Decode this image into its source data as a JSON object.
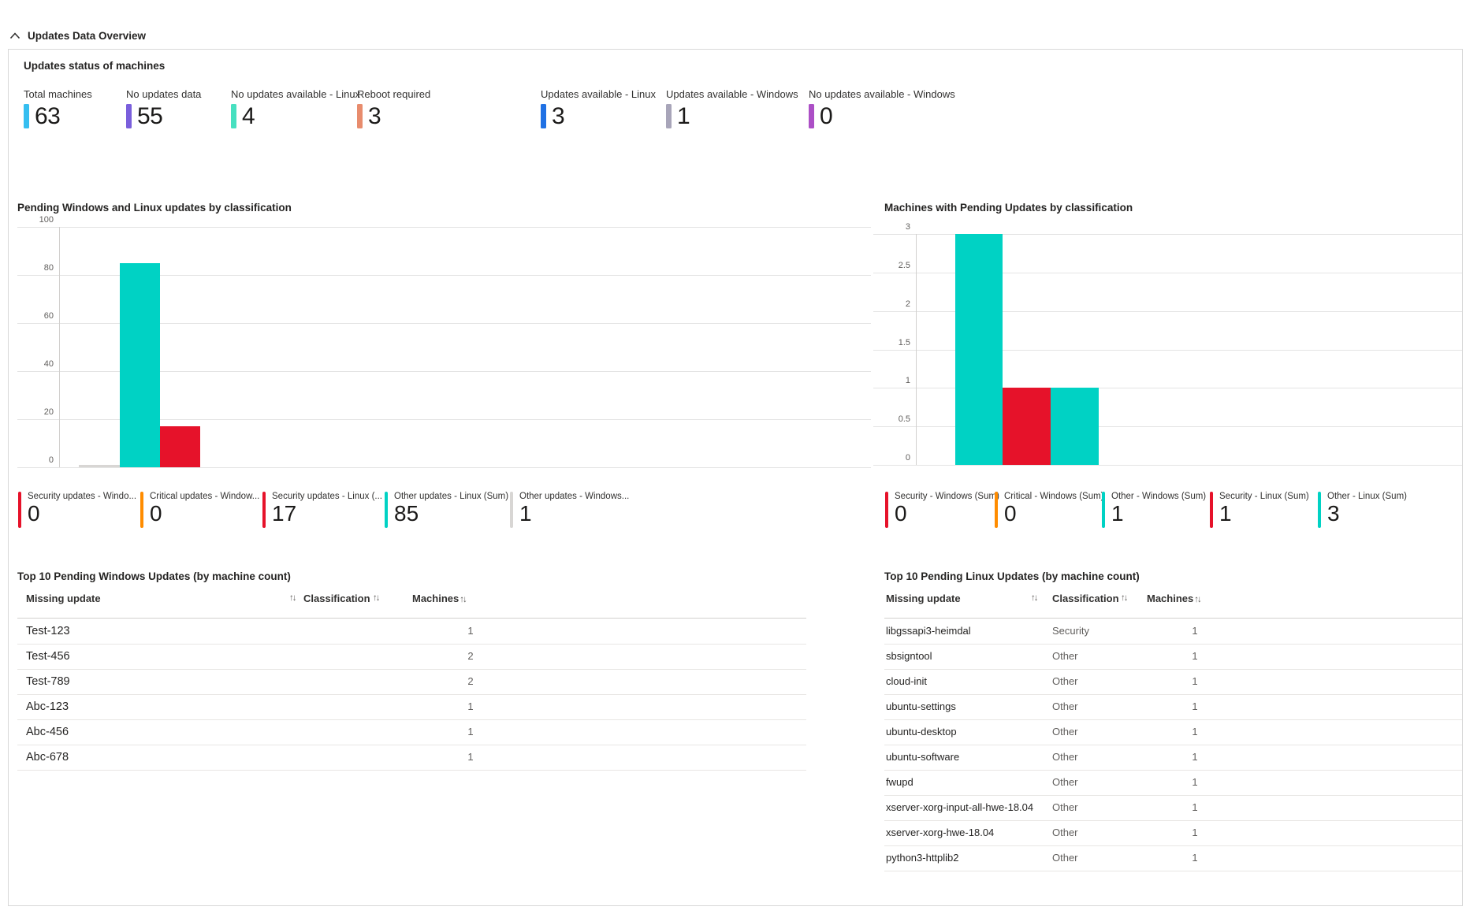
{
  "header": {
    "title": "Updates Data Overview"
  },
  "status": {
    "title": "Updates status of machines",
    "tiles": [
      {
        "label": "Total machines",
        "value": "63",
        "color": "#35bef0"
      },
      {
        "label": "No updates data",
        "value": "55",
        "color": "#7a5fdc"
      },
      {
        "label": "No updates available - Linux",
        "value": "4",
        "color": "#47e0c0"
      },
      {
        "label": "Reboot required",
        "value": "3",
        "color": "#e88c6d"
      },
      {
        "label": "Updates available - Linux",
        "value": "3",
        "color": "#2071e4"
      },
      {
        "label": "Updates available - Windows",
        "value": "1",
        "color": "#a8a5b9"
      },
      {
        "label": "No updates available - Windows",
        "value": "0",
        "color": "#ac4fc6"
      }
    ]
  },
  "chart_data": [
    {
      "type": "bar",
      "title": "Pending Windows and Linux updates by classification",
      "categories": [
        "Security updates - Windows",
        "Critical updates - Windows",
        "Security updates - Linux",
        "Other updates - Linux",
        "Other updates - Windows"
      ],
      "values": [
        0,
        0,
        17,
        85,
        1
      ],
      "ylim": [
        0,
        100
      ],
      "yticks": [
        0,
        20,
        40,
        60,
        80,
        100
      ],
      "grid": "on",
      "legend_position": "bottom",
      "bars_on_screen": [
        {
          "category": "Other updates - Windows",
          "value": 1,
          "color": "#d8d6d4"
        },
        {
          "category": "Other updates - Linux",
          "value": 85,
          "color": "#00d2c4"
        },
        {
          "category": "Security updates - Linux",
          "value": 17,
          "color": "#e6122a"
        }
      ],
      "legend": [
        {
          "label": "Security updates - Windo...",
          "value": "0",
          "color": "#e6122a"
        },
        {
          "label": "Critical updates - Window...",
          "value": "0",
          "color": "#ff8c00"
        },
        {
          "label": "Security updates - Linux (...",
          "value": "17",
          "color": "#e6122a"
        },
        {
          "label": "Other updates - Linux (Sum)",
          "value": "85",
          "color": "#00d2c4"
        },
        {
          "label": "Other updates - Windows...",
          "value": "1",
          "color": "#d8d6d4"
        }
      ]
    },
    {
      "type": "bar",
      "title": "Machines with Pending Updates by classification",
      "categories": [
        "Security - Windows (Sum)",
        "Critical - Windows (Sum)",
        "Other - Windows (Sum)",
        "Security - Linux (Sum)",
        "Other - Linux (Sum)"
      ],
      "values": [
        0,
        0,
        1,
        1,
        3
      ],
      "ylim": [
        0,
        3
      ],
      "yticks": [
        0,
        0.5,
        1,
        1.5,
        2,
        2.5,
        3
      ],
      "grid": "on",
      "legend_position": "bottom",
      "bars_on_screen": [
        {
          "category": "Other - Linux (Sum)",
          "value": 3,
          "color": "#00d2c4"
        },
        {
          "category": "Security - Linux (Sum)",
          "value": 1,
          "color": "#e6122a"
        },
        {
          "category": "Other - Windows (Sum)",
          "value": 1,
          "color": "#00d2c4"
        }
      ],
      "legend": [
        {
          "label": "Security - Windows (Sum)",
          "value": "0",
          "color": "#e6122a"
        },
        {
          "label": "Critical - Windows (Sum)",
          "value": "0",
          "color": "#ff8c00"
        },
        {
          "label": "Other - Windows (Sum)",
          "value": "1",
          "color": "#00d2c4"
        },
        {
          "label": "Security - Linux (Sum)",
          "value": "1",
          "color": "#e6122a"
        },
        {
          "label": "Other - Linux (Sum)",
          "value": "3",
          "color": "#00d2c4"
        }
      ]
    }
  ],
  "tables": [
    {
      "title": "Top 10 Pending Windows Updates (by machine count)",
      "columns": [
        "Missing update",
        "Classification",
        "Machines"
      ],
      "sort_icon": "↑↓",
      "rows": [
        {
          "update": "Test-123",
          "classification": "",
          "machines": "1"
        },
        {
          "update": "Test-456",
          "classification": "",
          "machines": "2"
        },
        {
          "update": "Test-789",
          "classification": "",
          "machines": "2"
        },
        {
          "update": "Abc-123",
          "classification": "",
          "machines": "1"
        },
        {
          "update": "Abc-456",
          "classification": "",
          "machines": "1"
        },
        {
          "update": "Abc-678",
          "classification": "",
          "machines": "1"
        }
      ]
    },
    {
      "title": "Top 10 Pending Linux Updates (by machine count)",
      "columns": [
        "Missing update",
        "Classification",
        "Machines"
      ],
      "sort_icon": "↑↓",
      "rows": [
        {
          "update": "libgssapi3-heimdal",
          "classification": "Security",
          "machines": "1"
        },
        {
          "update": "sbsigntool",
          "classification": "Other",
          "machines": "1"
        },
        {
          "update": "cloud-init",
          "classification": "Other",
          "machines": "1"
        },
        {
          "update": "ubuntu-settings",
          "classification": "Other",
          "machines": "1"
        },
        {
          "update": "ubuntu-desktop",
          "classification": "Other",
          "machines": "1"
        },
        {
          "update": "ubuntu-software",
          "classification": "Other",
          "machines": "1"
        },
        {
          "update": "fwupd",
          "classification": "Other",
          "machines": "1"
        },
        {
          "update": "xserver-xorg-input-all-hwe-18.04",
          "classification": "Other",
          "machines": "1"
        },
        {
          "update": "xserver-xorg-hwe-18.04",
          "classification": "Other",
          "machines": "1"
        },
        {
          "update": "python3-httplib2",
          "classification": "Other",
          "machines": "1"
        }
      ]
    }
  ]
}
